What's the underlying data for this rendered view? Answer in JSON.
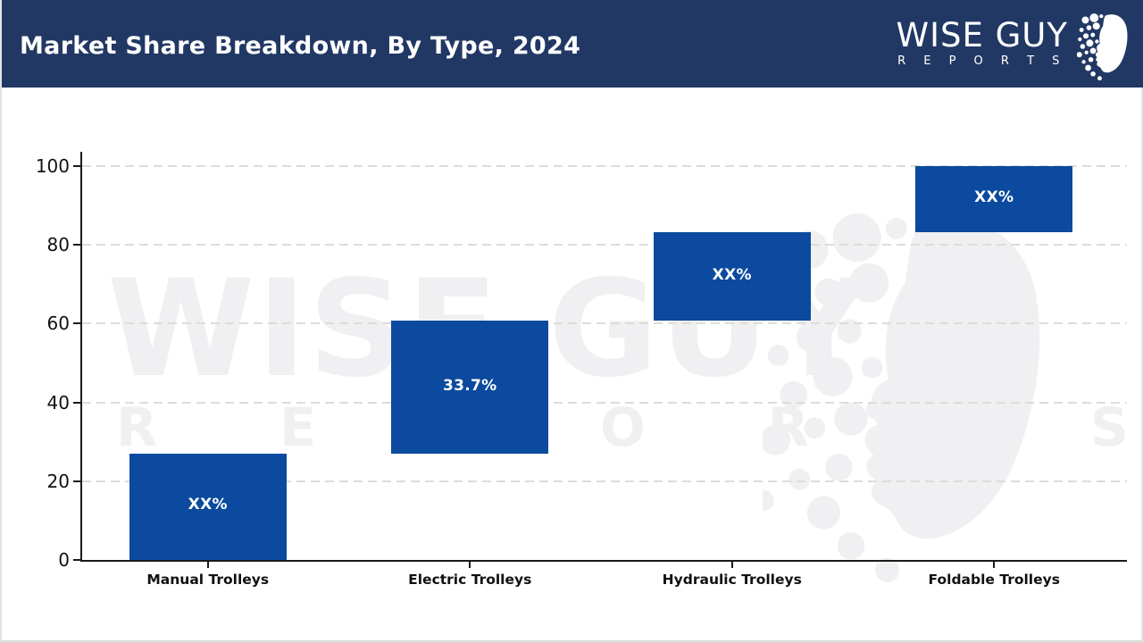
{
  "header": {
    "title": "Market Share Breakdown, By Type, 2024",
    "bg_color": "#223864",
    "logo": {
      "line1": "WISE GUY",
      "line2": "R E P O R T S"
    }
  },
  "watermark": {
    "line1": "WISE GUY",
    "line2": "R E P O R T S",
    "color": "#f0f0f2"
  },
  "chart_data": {
    "type": "bar",
    "subtype": "waterfall-floating-bars",
    "title": "Market Share Breakdown, By Type, 2024",
    "categories": [
      "Manual Trolleys",
      "Electric Trolleys",
      "Hydraulic Trolleys",
      "Foldable Trolleys"
    ],
    "segments": [
      {
        "category": "Manual Trolleys",
        "start": 0,
        "end": 27,
        "label": "XX%"
      },
      {
        "category": "Electric Trolleys",
        "start": 27,
        "end": 60.7,
        "label": "33.7%"
      },
      {
        "category": "Hydraulic Trolleys",
        "start": 60.7,
        "end": 83.2,
        "label": "XX%"
      },
      {
        "category": "Foldable Trolleys",
        "start": 83.2,
        "end": 100,
        "label": "XX%"
      }
    ],
    "y_ticks": [
      0,
      20,
      40,
      60,
      80,
      100
    ],
    "ylim": [
      0,
      105
    ],
    "xlabel": "",
    "ylabel": "",
    "grid": "horizontal-dashed",
    "legend": "none",
    "bar_color": "#0b4a9e",
    "grid_color": "#dcdcdc",
    "axis_color": "#1a1a1a"
  }
}
